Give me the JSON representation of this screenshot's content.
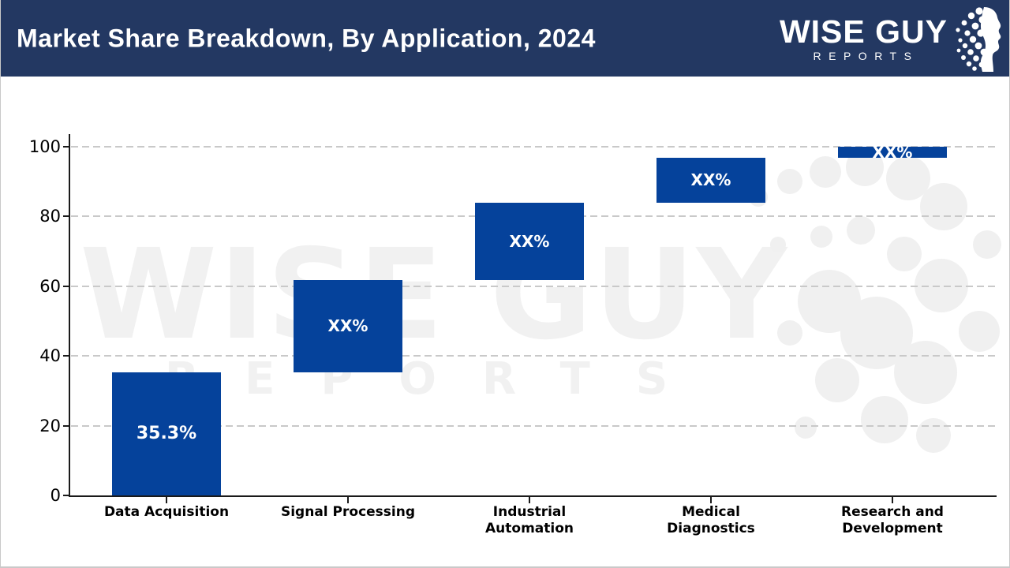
{
  "header": {
    "title": "Market Share Breakdown, By Application, 2024",
    "logo": {
      "wordmark": "WISE GUY",
      "subtext": "REPORTS"
    }
  },
  "watermark": {
    "line1": "WISE GUY",
    "line2": "REPORTS"
  },
  "colors": {
    "header_bg": "#233862",
    "bar": "#05429b",
    "bar_label": "#ffffff",
    "grid": "#c9c9c9",
    "axis": "#1a1a1a",
    "watermark": "#f1f1f1"
  },
  "chart_data": {
    "type": "bar",
    "subtype": "waterfall",
    "title": "Market Share Breakdown, By Application, 2024",
    "xlabel": "",
    "ylabel": "",
    "ylim": [
      0,
      104
    ],
    "yticks": [
      0,
      20,
      40,
      60,
      80,
      100
    ],
    "grid": "horizontal-dashed",
    "legend": "none",
    "categories": [
      "Data Acquisition",
      "Signal Processing",
      "Industrial Automation",
      "Medical Diagnostics",
      "Research and Development"
    ],
    "categories_lines": [
      [
        "Data Acquisition"
      ],
      [
        "Signal Processing"
      ],
      [
        "Industrial",
        "Automation"
      ],
      [
        "Medical",
        "Diagnostics"
      ],
      [
        "Research and",
        "Development"
      ]
    ],
    "bars": [
      {
        "category": "Data Acquisition",
        "start": 0,
        "end": 35.3,
        "label": "35.3%"
      },
      {
        "category": "Signal Processing",
        "start": 35.3,
        "end": 61.8,
        "label": "XX%"
      },
      {
        "category": "Industrial Automation",
        "start": 61.8,
        "end": 83.9,
        "label": "XX%"
      },
      {
        "category": "Medical Diagnostics",
        "start": 83.9,
        "end": 96.9,
        "label": "XX%"
      },
      {
        "category": "Research and Development",
        "start": 96.9,
        "end": 100,
        "label": "XX%"
      }
    ]
  }
}
